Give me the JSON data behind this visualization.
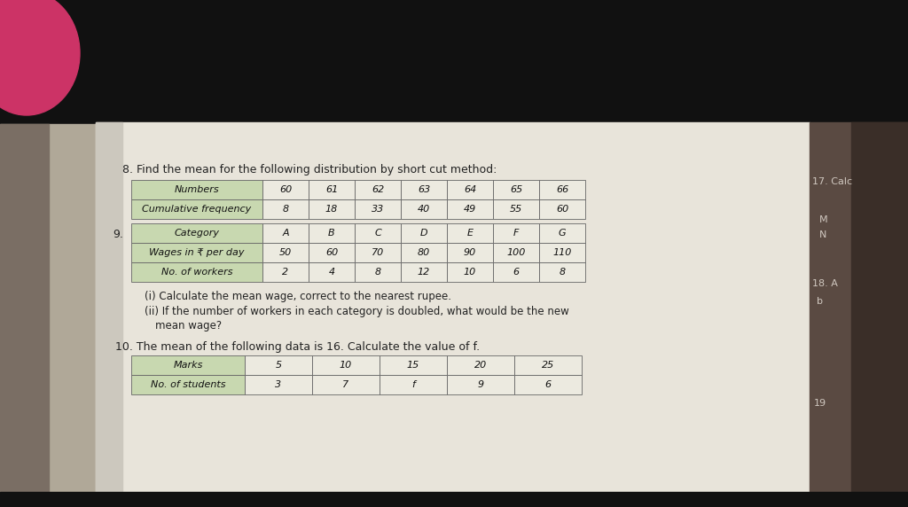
{
  "bg_dark": "#1a1a1a",
  "page_color": "#dedad0",
  "page_light": "#e8e4da",
  "shadow_color": "#b8b4a8",
  "question8_text": "8. Find the mean for the following distribution by short cut method:",
  "table8_header_bg": "#c8d8b0",
  "table8_data_bg": "#eceae0",
  "table8_rows": [
    [
      "Numbers",
      "60",
      "61",
      "62",
      "63",
      "64",
      "65",
      "66"
    ],
    [
      "Cumulative frequency",
      "8",
      "18",
      "33",
      "40",
      "49",
      "55",
      "60"
    ]
  ],
  "question9_label": "9.",
  "table9_header_bg": "#c8d8b0",
  "table9_data_bg": "#eceae0",
  "table9_rows": [
    [
      "Category",
      "A",
      "B",
      "C",
      "D",
      "E",
      "F",
      "G"
    ],
    [
      "Wages in ₹ per day",
      "50",
      "60",
      "70",
      "80",
      "90",
      "100",
      "110"
    ],
    [
      "No. of workers",
      "2",
      "4",
      "8",
      "12",
      "10",
      "6",
      "8"
    ]
  ],
  "sub_q_i": "(i) Calculate the mean wage, correct to the nearest rupee.",
  "sub_q_ii_line1": "(ii) If the number of workers in each category is doubled, what would be the new",
  "sub_q_ii_line2": "      mean wage?",
  "question10_text": "10. The mean of the following data is 16. Calculate the value of f.",
  "table10_header_bg": "#c8d8b0",
  "table10_data_bg": "#eceae0",
  "table10_rows": [
    [
      "Marks",
      "5",
      "10",
      "15",
      "20",
      "25"
    ],
    [
      "No. of students",
      "3",
      "7",
      "f",
      "9",
      "6"
    ]
  ],
  "side_text_17": "17. Calc",
  "side_text_M": "M",
  "side_text_N": "N",
  "side_text_18": "18. A",
  "side_text_b": "b",
  "side_text_19": "19",
  "right_panel_color": "#5a4a42",
  "left_panel_color": "#2a2218"
}
